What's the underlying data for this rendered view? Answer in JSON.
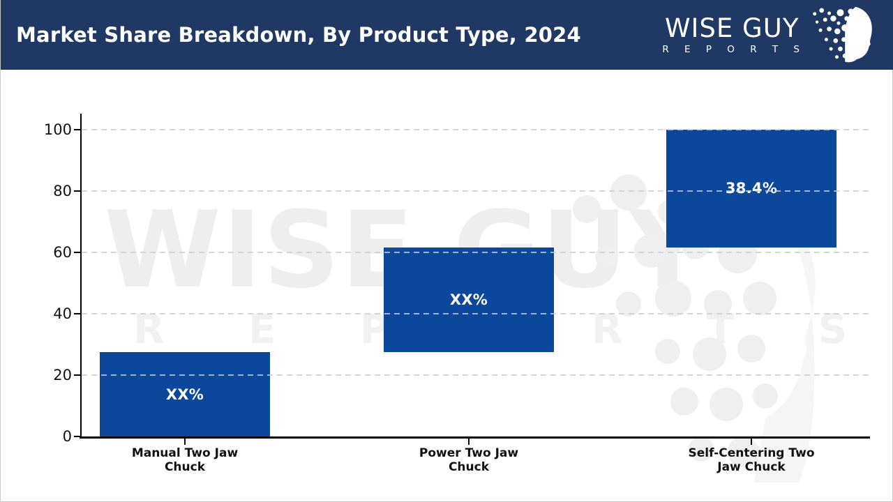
{
  "header": {
    "title": "Market Share Breakdown, By Product Type, 2024",
    "bg_color": "#1f3864",
    "logo": {
      "line1": "WISE GUY",
      "line2": "R E P O R T S"
    }
  },
  "watermark": {
    "line1": "WISE GUY",
    "line2": "R E P O R T S"
  },
  "chart_data": {
    "type": "bar",
    "subtype": "floating-segment-waterfall",
    "title": "Market Share Breakdown, By Product Type, 2024",
    "categories": [
      [
        "Manual Two Jaw",
        "Chuck"
      ],
      [
        "Power Two Jaw",
        "Chuck"
      ],
      [
        "Self-Centering Two",
        "Jaw Chuck"
      ]
    ],
    "segments": [
      {
        "category": "Manual Two Jaw Chuck",
        "from": 0,
        "to": 27.5,
        "label": "XX%"
      },
      {
        "category": "Power Two Jaw Chuck",
        "from": 27.5,
        "to": 61.6,
        "label": "XX%"
      },
      {
        "category": "Self-Centering Two Jaw Chuck",
        "from": 61.6,
        "to": 100,
        "label": "38.4%"
      }
    ],
    "ylim": [
      0,
      100
    ],
    "yticks": [
      0,
      20,
      40,
      60,
      80,
      100
    ],
    "grid": "dashed-horizontal",
    "legend": "none",
    "bar_color": "#0b489c",
    "bar_label_color": "#ffffff",
    "axis_color": "#000000",
    "gridline_color": "#d9d9d9"
  }
}
